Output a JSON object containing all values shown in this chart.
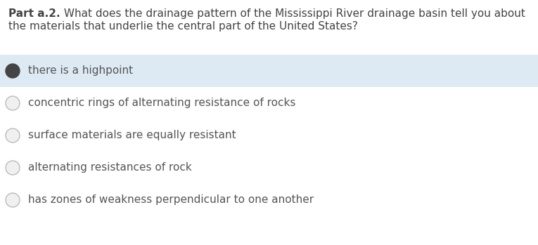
{
  "background_color": "#ffffff",
  "question_bold": "Part a.2.",
  "question_rest": " What does the drainage pattern of the Mississippi River drainage basin tell you about\nthe materials that underlie the central part of the United States?",
  "options": [
    "there is a highpoint",
    "concentric rings of alternating resistance of rocks",
    "surface materials are equally resistant",
    "alternating resistances of rock",
    "has zones of weakness perpendicular to one another"
  ],
  "selected_index": 0,
  "selected_bg": "#ddeaf4",
  "option_text_color": "#555555",
  "question_text_color": "#444444",
  "radio_unselected_fill": "#f0f0f0",
  "radio_unselected_edge": "#bbbbbb",
  "radio_selected_fill": "#444444",
  "radio_selected_edge": "#444444",
  "font_size_question": 11.0,
  "font_size_option": 11.0,
  "fig_width": 7.65,
  "fig_height": 3.49,
  "dpi": 100
}
